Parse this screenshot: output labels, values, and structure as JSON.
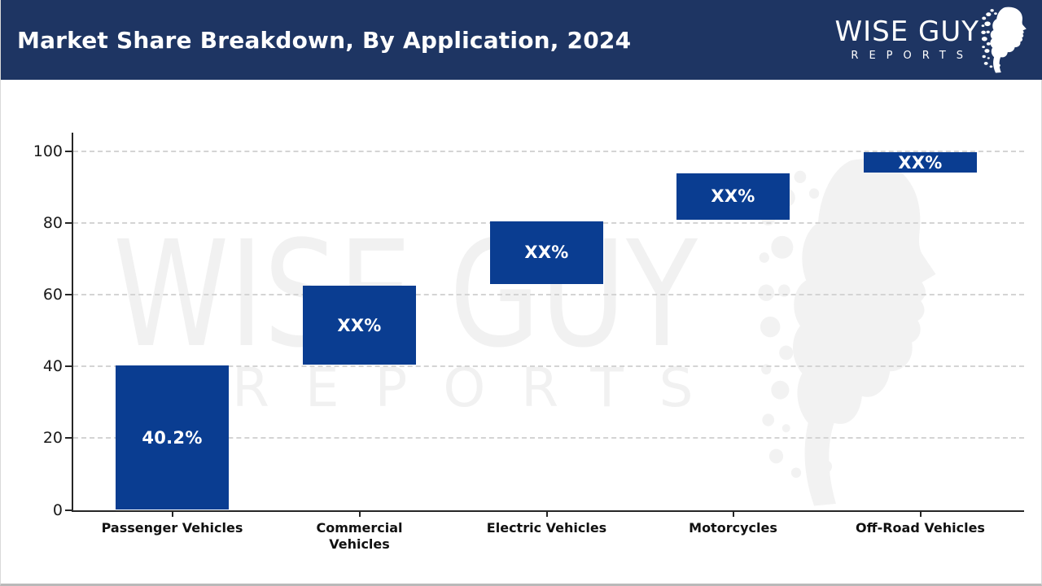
{
  "header": {
    "title": "Market Share Breakdown, By Application, 2024",
    "bg_color": "#1e3563",
    "logo": {
      "line1": "WISE GUY",
      "line2": "REPORTS"
    }
  },
  "watermark": {
    "line1": "WISE GUY",
    "line2": "REPORTS"
  },
  "chart_data": {
    "type": "bar",
    "variant": "waterfall",
    "title": "Market Share Breakdown, By Application, 2024",
    "categories": [
      "Passenger Vehicles",
      "Commercial Vehicles",
      "Electric Vehicles",
      "Motorcycles",
      "Off-Road Vehicles"
    ],
    "bars": [
      {
        "category": "Passenger Vehicles",
        "label_lines": [
          "Passenger Vehicles"
        ],
        "start": 0,
        "end": 40.2,
        "value_label": "40.2%"
      },
      {
        "category": "Commercial Vehicles",
        "label_lines": [
          "Commercial",
          "Vehicles"
        ],
        "start": 40.5,
        "end": 62.5,
        "value_label": "XX%"
      },
      {
        "category": "Electric Vehicles",
        "label_lines": [
          "Electric Vehicles"
        ],
        "start": 63,
        "end": 80.5,
        "value_label": "XX%"
      },
      {
        "category": "Motorcycles",
        "label_lines": [
          "Motorcycles"
        ],
        "start": 81,
        "end": 93.8,
        "value_label": "XX%"
      },
      {
        "category": "Off-Road Vehicles",
        "label_lines": [
          "Off-Road Vehicles"
        ],
        "start": 94,
        "end": 99.7,
        "value_label": "XX%"
      }
    ],
    "ylim": [
      0,
      105
    ],
    "yticks": [
      0,
      20,
      40,
      60,
      80,
      100
    ],
    "grid": {
      "axis": "y",
      "style": "dashed",
      "color": "#d4d4d4"
    },
    "bar_color": "#0a3d91",
    "value_label_color": "#ffffff",
    "legend": "none"
  }
}
